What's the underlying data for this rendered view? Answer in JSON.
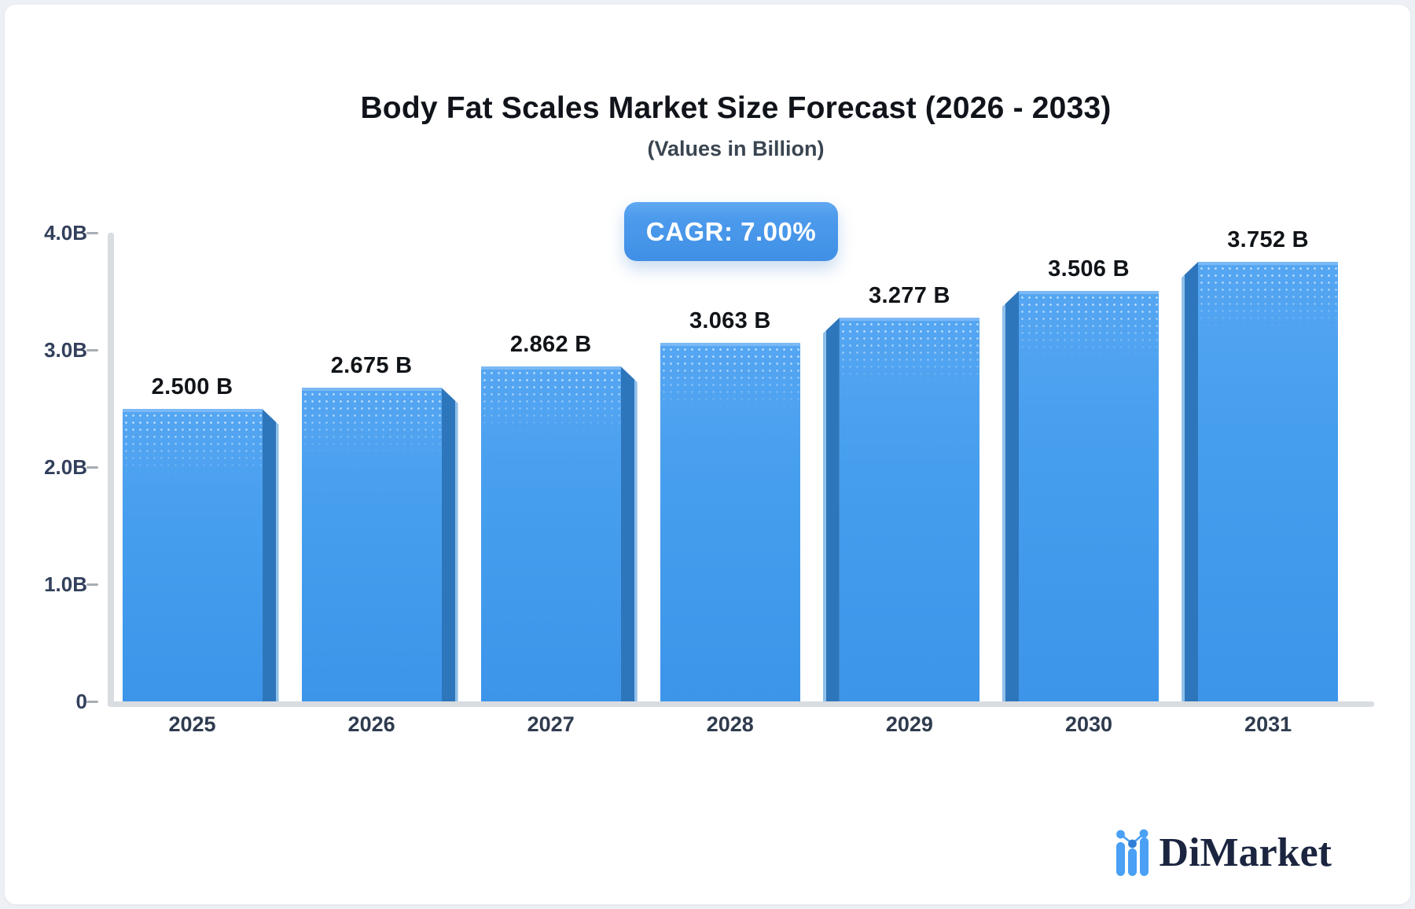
{
  "header": {
    "title": "Body Fat Scales Market Size Forecast (2026 - 2033)",
    "subtitle": "(Values in Billion)"
  },
  "badge": {
    "label": "CAGR: 7.00%",
    "bg": "#4394E8"
  },
  "chart_data": {
    "type": "bar",
    "title": "Body Fat Scales Market Size Forecast (2026 - 2033)",
    "subtitle": "(Values in Billion)",
    "cagr": "CAGR: 7.00%",
    "categories": [
      "2025",
      "2026",
      "2027",
      "2028",
      "2029",
      "2030",
      "2031"
    ],
    "values": [
      2.5,
      2.675,
      2.862,
      3.063,
      3.277,
      3.506,
      3.752
    ],
    "value_labels": [
      "2.500 B",
      "2.675 B",
      "2.862 B",
      "3.063 B",
      "3.277 B",
      "3.506 B",
      "3.752 B"
    ],
    "yticks": [
      {
        "label": "0",
        "value": 0
      },
      {
        "label": "1.0B",
        "value": 1
      },
      {
        "label": "2.0B",
        "value": 2
      },
      {
        "label": "3.0B",
        "value": 3
      },
      {
        "label": "4.0B",
        "value": 4
      }
    ],
    "ylim": [
      0,
      4
    ],
    "xlabel": "",
    "ylabel": "",
    "grid": false,
    "legend": false,
    "bar_color": "#459CEE",
    "bar_side_color": "#2E76BB",
    "bar_edge_color": "#8FC0EA",
    "axis_color": "#D9DDE1"
  },
  "branding": {
    "logo_text": "DiMarket",
    "logo_color": "#1B2540",
    "logo_accent": "#4AA0F5"
  }
}
